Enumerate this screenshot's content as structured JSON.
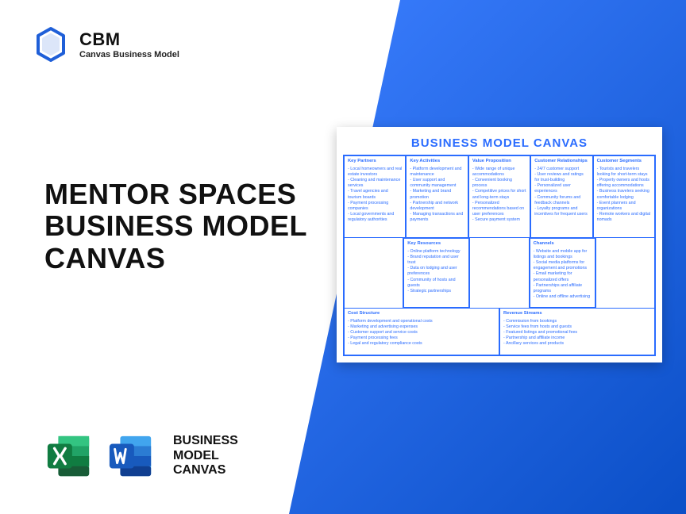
{
  "logo": {
    "abbr": "CBM",
    "full": "Canvas Business Model"
  },
  "headline": {
    "l1": "MENTOR SPACES",
    "l2": "BUSINESS MODEL",
    "l3": "CANVAS"
  },
  "bottom": {
    "l1": "BUSINESS",
    "l2": "MODEL",
    "l3": "CANVAS"
  },
  "canvas": {
    "title": "BUSINESS MODEL CANVAS",
    "title_color": "#2a6cff",
    "border_color": "#2a6cff",
    "text_color": "#2a6cff",
    "background_color": "#ffffff",
    "partners": {
      "h": "Key Partners",
      "items": [
        "Local homeowners and real estate investors",
        "Cleaning and maintenance services",
        "Travel agencies and tourism boards",
        "Payment processing companies",
        "Local governments and regulatory authorities"
      ]
    },
    "activities": {
      "h": "Key Activities",
      "items": [
        "Platform development and maintenance",
        "User support and community management",
        "Marketing and brand promotion",
        "Partnership and network development",
        "Managing transactions and payments"
      ]
    },
    "value": {
      "h": "Value Proposition",
      "items": [
        "Wide range of unique accommodations",
        "Convenient booking process",
        "Competitive prices for short and long-term stays",
        "Personalized recommendations based on user preferences",
        "Secure payment system"
      ]
    },
    "relationships": {
      "h": "Customer Relationships",
      "items": [
        "24/7 customer support",
        "User reviews and ratings for trust-building",
        "Personalized user experiences",
        "Community forums and feedback channels",
        "Loyalty programs and incentives for frequent users"
      ]
    },
    "segments": {
      "h": "Customer Segments",
      "items": [
        "Tourists and travelers looking for short-term stays",
        "Property owners and hosts offering accommodations",
        "Business travelers seeking comfortable lodging",
        "Event planners and organizations",
        "Remote workers and digital nomads"
      ]
    },
    "resources": {
      "h": "Key Resources",
      "items": [
        "Online platform technology",
        "Brand reputation and user trust",
        "Data on lodging and user preferences",
        "Community of hosts and guests",
        "Strategic partnerships"
      ]
    },
    "channels": {
      "h": "Channels",
      "items": [
        "Website and mobile app for listings and bookings",
        "Social media platforms for engagement and promotions",
        "Email marketing for personalized offers",
        "Partnerships and affiliate programs",
        "Online and offline advertising"
      ]
    },
    "cost": {
      "h": "Cost Structure",
      "items": [
        "Platform development and operational costs",
        "Marketing and advertising expenses",
        "Customer support and service costs",
        "Payment processing fees",
        "Legal and regulatory compliance costs"
      ]
    },
    "revenue": {
      "h": "Revenue Streams",
      "items": [
        "Commission from bookings",
        "Service fees from hosts and guests",
        "Featured listings and promotional fees",
        "Partnership and affiliate income",
        "Ancillary services and products"
      ]
    }
  },
  "colors": {
    "gradient_from": "#3b7eff",
    "gradient_to": "#0b4fc7",
    "excel_dark": "#107c41",
    "excel_light": "#21a366",
    "word_dark": "#185abd",
    "word_light": "#2b7cd3",
    "logo": "#1f5fd8"
  }
}
